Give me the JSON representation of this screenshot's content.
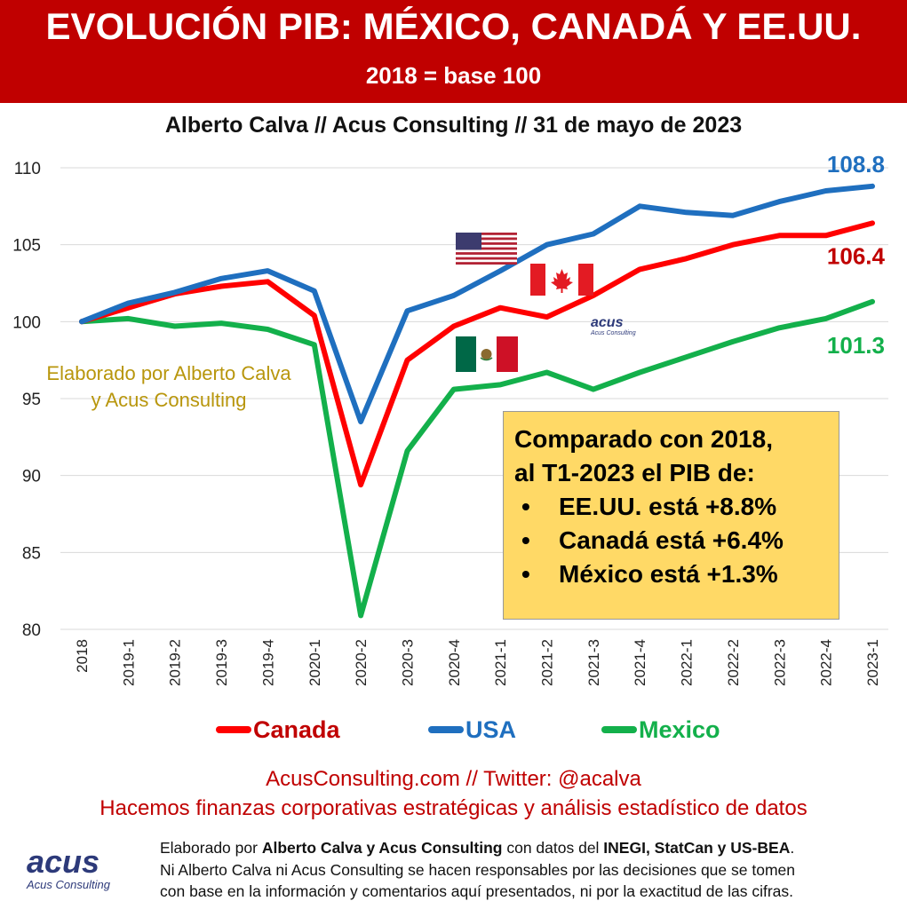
{
  "header": {
    "title": "EVOLUCIÓN PIB: MÉXICO, CANADÁ Y EE.UU.",
    "subtitle": "2018 = base 100",
    "author_line": "Alberto Calva // Acus Consulting // 31 de mayo de 2023"
  },
  "watermark": {
    "line1": "Elaborado por Alberto Calva",
    "line2": "y Acus Consulting"
  },
  "callout": {
    "line1": "Comparado con 2018,",
    "line2": "al T1-2023 el PIB de:",
    "bullet_glyph": "•",
    "items": [
      "EE.UU. está +8.8%",
      "Canadá está +6.4%",
      "México está +1.3%"
    ]
  },
  "logo": {
    "name": "acus",
    "tagline": "Acus Consulting"
  },
  "footer": {
    "web": "AcusConsulting.com // Twitter: @acalva",
    "tagline": "Hacemos finanzas corporativas estratégicas y análisis estadístico de datos",
    "disclaimer_p1": "Elaborado por ",
    "disclaimer_b1": "Alberto Calva y Acus Consulting",
    "disclaimer_p2": " con datos del ",
    "disclaimer_b2": "INEGI, StatCan y US-BEA",
    "disclaimer_p3": ".",
    "disclaimer_line2": "Ni Alberto Calva ni Acus Consulting se hacen responsables por las decisiones que se tomen",
    "disclaimer_line3": "con base en la información y comentarios aquí presentados, ni por la exactitud de las cifras."
  },
  "chart_data": {
    "type": "line",
    "title": "EVOLUCIÓN PIB: MÉXICO, CANADÁ Y EE.UU.",
    "subtitle": "2018 = base 100",
    "xlabel": "",
    "ylabel": "",
    "ylim": [
      80,
      110
    ],
    "yticks": [
      80,
      85,
      90,
      95,
      100,
      105,
      110
    ],
    "grid": true,
    "legend": "bottom",
    "categories": [
      "2018",
      "2019-1",
      "2019-2",
      "2019-3",
      "2019-4",
      "2020-1",
      "2020-2",
      "2020-3",
      "2020-4",
      "2021-1",
      "2021-2",
      "2021-3",
      "2021-4",
      "2022-1",
      "2022-2",
      "2022-3",
      "2022-4",
      "2023-1"
    ],
    "series": [
      {
        "name": "Canada",
        "color": "#ff0000",
        "end_label": "106.4",
        "end_label_color": "#c00000",
        "values": [
          100,
          100.9,
          101.8,
          102.3,
          102.6,
          100.4,
          89.4,
          97.5,
          99.7,
          100.9,
          100.3,
          101.7,
          103.4,
          104.1,
          105.0,
          105.6,
          105.6,
          106.4
        ]
      },
      {
        "name": "USA",
        "color": "#1f6fbf",
        "end_label": "108.8",
        "end_label_color": "#1f6fbf",
        "values": [
          100,
          101.2,
          101.9,
          102.8,
          103.3,
          102.0,
          93.5,
          100.7,
          101.7,
          103.3,
          105.0,
          105.7,
          107.5,
          107.1,
          106.9,
          107.8,
          108.5,
          108.8
        ]
      },
      {
        "name": "Mexico",
        "color": "#13b04b",
        "end_label": "101.3",
        "end_label_color": "#13b04b",
        "values": [
          100,
          100.2,
          99.7,
          99.9,
          99.5,
          98.5,
          80.9,
          91.6,
          95.6,
          95.9,
          96.7,
          95.6,
          96.7,
          97.7,
          98.7,
          99.6,
          100.2,
          101.3
        ]
      }
    ]
  }
}
